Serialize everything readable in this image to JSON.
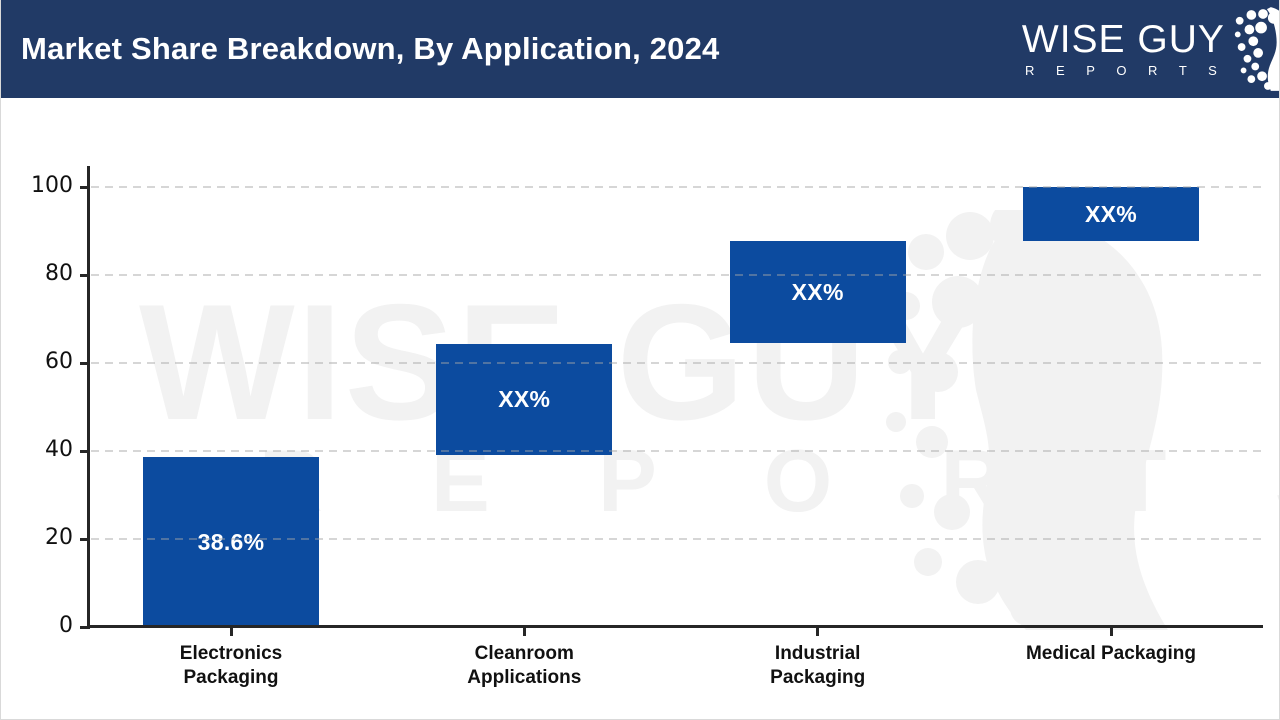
{
  "header": {
    "title": "Market Share Breakdown, By Application, 2024",
    "bg_color": "#213a66",
    "logo": {
      "name": "WISE GUY",
      "sub": "R E P O R T S"
    }
  },
  "watermark": {
    "line1": "WISE GUY",
    "line2": "R E P O R T S"
  },
  "chart_data": {
    "type": "bar",
    "subtype": "waterfall-floating-bars",
    "title": "Market Share Breakdown, By Application, 2024",
    "categories": [
      "Electronics Packaging",
      "Cleanroom Applications",
      "Industrial Packaging",
      "Medical Packaging"
    ],
    "category_label_lines": [
      [
        "Electronics",
        "Packaging"
      ],
      [
        "Cleanroom",
        "Applications"
      ],
      [
        "Industrial",
        "Packaging"
      ],
      [
        "Medical Packaging"
      ]
    ],
    "bar_labels": [
      "38.6%",
      "XX%",
      "XX%",
      "XX%"
    ],
    "bar_ranges": [
      [
        0,
        38.6
      ],
      [
        39.0,
        64.3
      ],
      [
        64.5,
        87.7
      ],
      [
        87.7,
        100.0
      ]
    ],
    "xlabel": "",
    "ylabel": "",
    "yticks": [
      0,
      20,
      40,
      60,
      80,
      100
    ],
    "ylim": [
      0,
      104
    ],
    "grid": "dashed-horizontal",
    "legend": "none",
    "bar_color": "#0c4b9f",
    "bar_label_color": "#ffffff",
    "axis_color": "#262626"
  }
}
